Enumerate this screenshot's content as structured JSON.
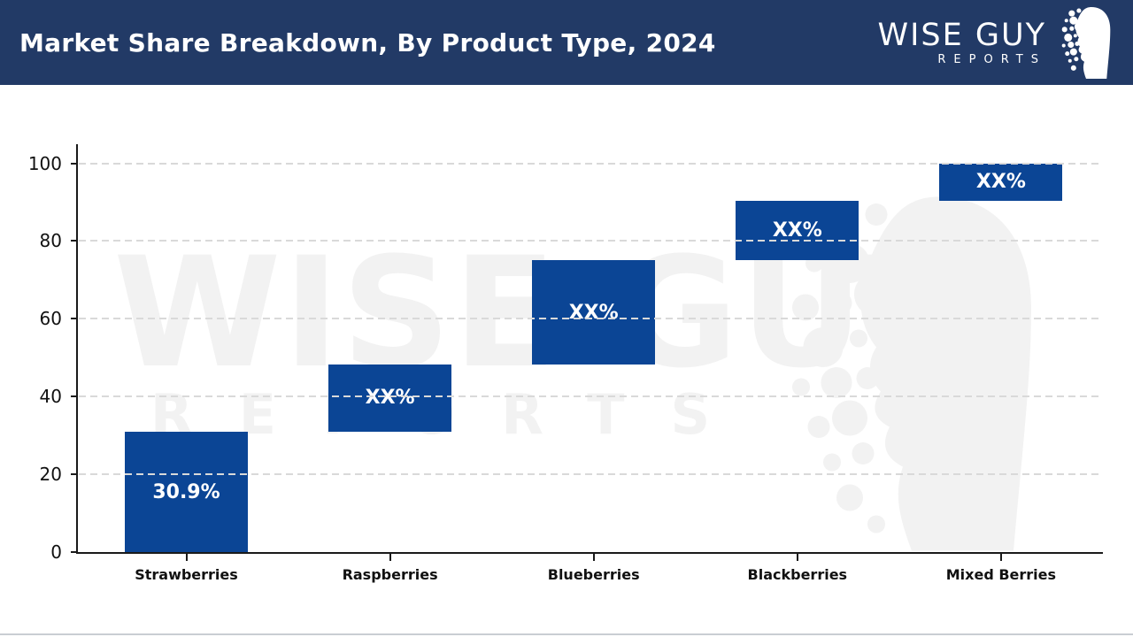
{
  "header": {
    "title": "Market Share Breakdown, By Product Type, 2024",
    "bg_color": "#223a66",
    "logo": {
      "line1": "WISE GUY",
      "line2": "REPORTS",
      "face_icon": "dotted-face-profile"
    }
  },
  "watermark": {
    "line1": "WISE GUY",
    "line2": "REPORTS",
    "face_icon": "dotted-face-profile",
    "color": "#f2f2f2"
  },
  "chart_data": {
    "type": "bar",
    "subtype": "waterfall",
    "title": "Market Share Breakdown, By Product Type, 2024",
    "categories": [
      "Strawberries",
      "Raspberries",
      "Blueberries",
      "Blackberries",
      "Mixed Berries"
    ],
    "segments": [
      {
        "category": "Strawberries",
        "start": 0,
        "end": 30.9,
        "label": "30.9%"
      },
      {
        "category": "Raspberries",
        "start": 30.9,
        "end": 48.3,
        "label": "XX%"
      },
      {
        "category": "Blueberries",
        "start": 48.3,
        "end": 75.0,
        "label": "XX%"
      },
      {
        "category": "Blackberries",
        "start": 75.0,
        "end": 90.3,
        "label": "XX%"
      },
      {
        "category": "Mixed Berries",
        "start": 90.3,
        "end": 100.0,
        "label": "XX%"
      }
    ],
    "y_ticks": [
      0,
      20,
      40,
      60,
      80,
      100
    ],
    "ylim": [
      0,
      105
    ],
    "xlabel": "",
    "ylabel": "",
    "grid": true,
    "gridline_style": "dashed",
    "bar_color": "#0b4595",
    "bar_label_color": "#ffffff",
    "legend": "none"
  }
}
